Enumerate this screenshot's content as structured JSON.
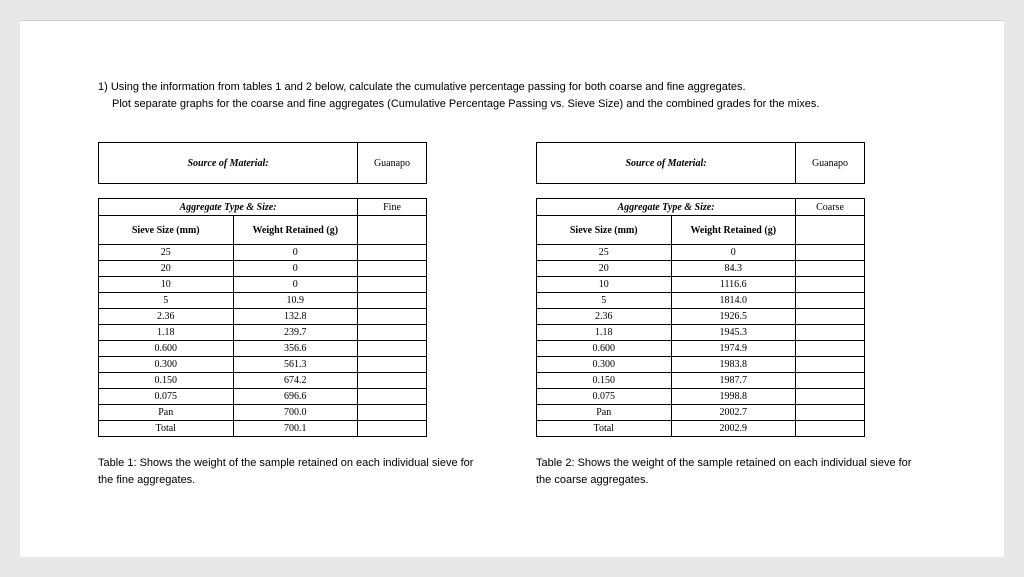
{
  "question": {
    "line1": "1) Using the information from tables 1 and 2 below, calculate the cumulative percentage passing for both coarse and fine aggregates.",
    "line2": "Plot separate graphs for the coarse and fine aggregates (Cumulative Percentage Passing vs. Sieve Size) and the combined grades for the mixes."
  },
  "table1": {
    "source_label": "Source of Material:",
    "source_value": "Guanapo",
    "agg_label": "Aggregate Type & Size:",
    "agg_value": "Fine",
    "col1": "Sieve Size (mm)",
    "col2": "Weight Retained (g)",
    "rows": [
      {
        "s": "25",
        "w": "0"
      },
      {
        "s": "20",
        "w": "0"
      },
      {
        "s": "10",
        "w": "0"
      },
      {
        "s": "5",
        "w": "10.9"
      },
      {
        "s": "2.36",
        "w": "132.8"
      },
      {
        "s": "1.18",
        "w": "239.7"
      },
      {
        "s": "0.600",
        "w": "356.6"
      },
      {
        "s": "0.300",
        "w": "561.3"
      },
      {
        "s": "0.150",
        "w": "674.2"
      },
      {
        "s": "0.075",
        "w": "696.6"
      },
      {
        "s": "Pan",
        "w": "700.0"
      },
      {
        "s": "Total",
        "w": "700.1"
      }
    ],
    "caption": "Table 1: Shows the weight of the sample retained on each individual sieve for the fine aggregates."
  },
  "table2": {
    "source_label": "Source of Material:",
    "source_value": "Guanapo",
    "agg_label": "Aggregate Type & Size:",
    "agg_value": "Coarse",
    "col1": "Sieve Size (mm)",
    "col2": "Weight Retained (g)",
    "rows": [
      {
        "s": "25",
        "w": "0"
      },
      {
        "s": "20",
        "w": "84.3"
      },
      {
        "s": "10",
        "w": "1116.6"
      },
      {
        "s": "5",
        "w": "1814.0"
      },
      {
        "s": "2.36",
        "w": "1926.5"
      },
      {
        "s": "1.18",
        "w": "1945.3"
      },
      {
        "s": "0.600",
        "w": "1974.9"
      },
      {
        "s": "0.300",
        "w": "1983.8"
      },
      {
        "s": "0.150",
        "w": "1987.7"
      },
      {
        "s": "0.075",
        "w": "1998.8"
      },
      {
        "s": "Pan",
        "w": "2002.7"
      },
      {
        "s": "Total",
        "w": "2002.9"
      }
    ],
    "caption": "Table 2: Shows the weight of the sample retained on each individual sieve for the coarse aggregates."
  }
}
